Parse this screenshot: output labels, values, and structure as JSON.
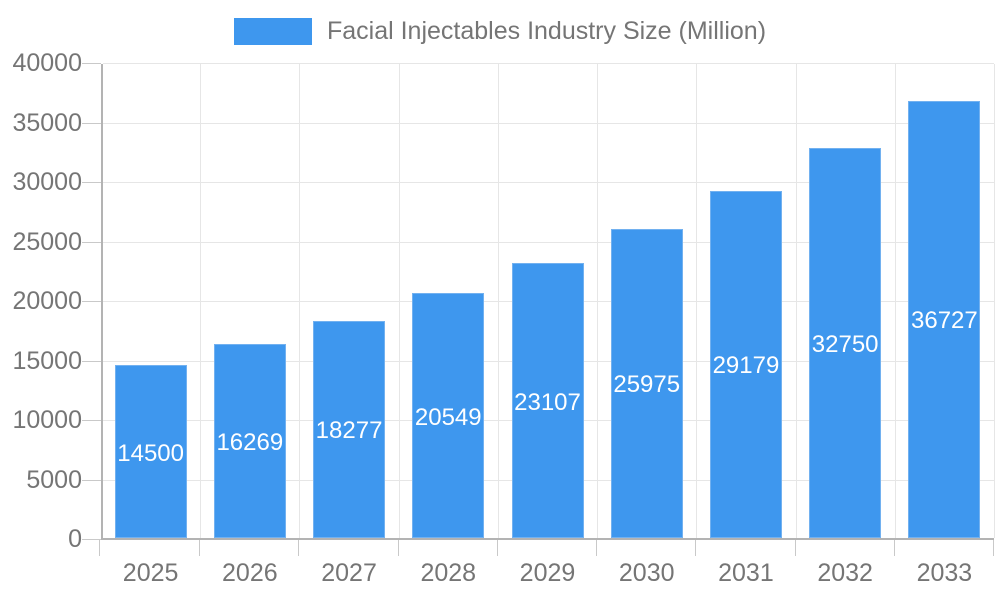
{
  "chart_data": {
    "type": "bar",
    "title": "Facial Injectables Industry Size (Million)",
    "legend_position": "top",
    "categories": [
      "2025",
      "2026",
      "2027",
      "2028",
      "2029",
      "2030",
      "2031",
      "2032",
      "2033"
    ],
    "values": [
      14500,
      16269,
      18277,
      20549,
      23107,
      25975,
      29179,
      32750,
      36727
    ],
    "xlabel": "",
    "ylabel": "",
    "ylim": [
      0,
      40000
    ],
    "yticks": [
      0,
      5000,
      10000,
      15000,
      20000,
      25000,
      30000,
      35000,
      40000
    ],
    "grid": true,
    "bar_color": "#3E97EE",
    "bar_edge_color": "#72B1F0",
    "value_label_color": "#FFFFFF",
    "axis_text_color": "#757575",
    "grid_color": "#E6E6E6",
    "axis_line_color": "#B3B3B3",
    "tick_color": "#C9C9C9"
  }
}
